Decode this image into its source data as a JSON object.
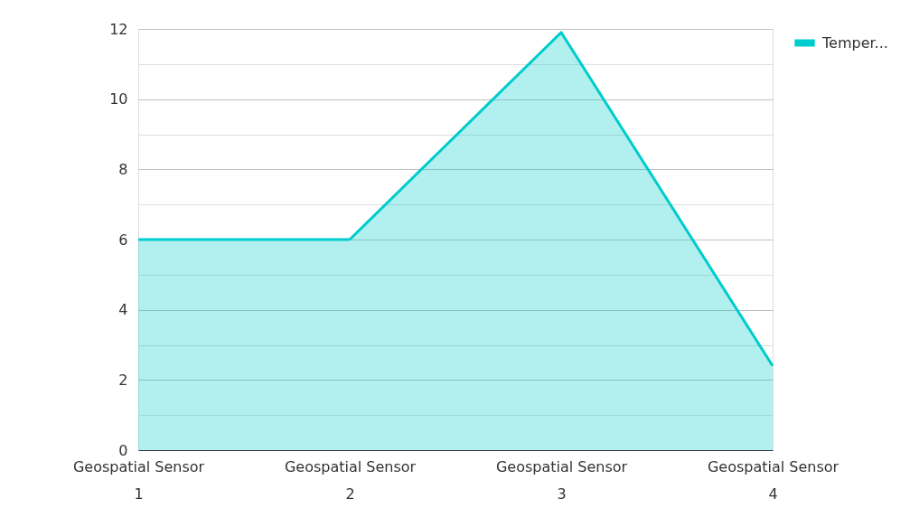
{
  "chart_data": {
    "type": "area",
    "categories": [
      "Geospatial Sensor 1",
      "Geospatial Sensor 2",
      "Geospatial Sensor 3",
      "Geospatial Sensor 4"
    ],
    "series": [
      {
        "name": "Temper...",
        "color": "#00cccc",
        "values": [
          6,
          6,
          11.9,
          2.4
        ]
      }
    ],
    "ylim": [
      0,
      12
    ],
    "yticks": [
      0,
      {
        "value": 1,
        "label": null
      },
      2,
      {
        "value": 3,
        "label": null
      },
      4,
      {
        "value": 5,
        "label": null
      },
      6,
      {
        "value": 7,
        "label": null
      },
      8,
      {
        "value": 9,
        "label": null
      },
      10,
      {
        "value": 11,
        "label": null
      },
      12
    ],
    "grid": "y",
    "legend": "top right",
    "marker": "none",
    "line_style": "solid"
  }
}
